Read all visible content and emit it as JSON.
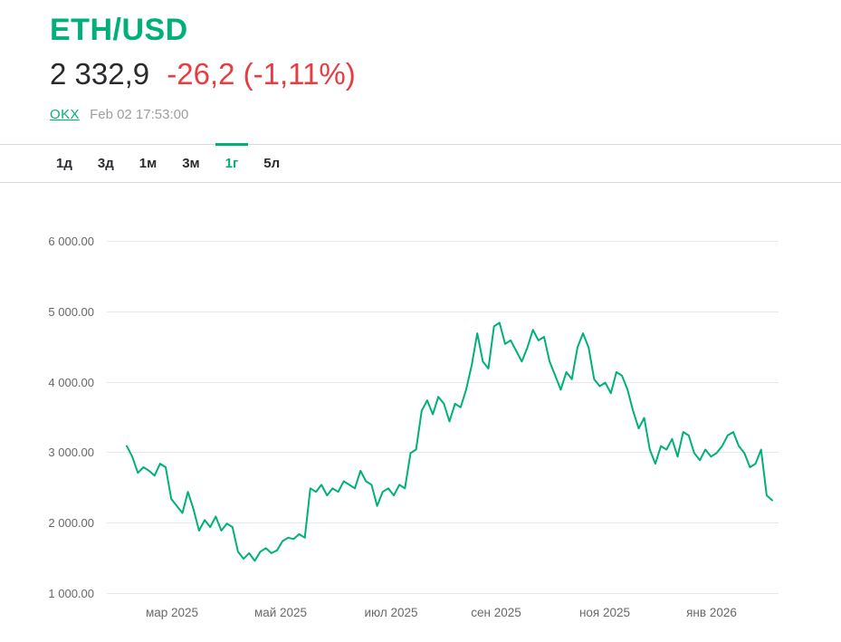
{
  "colors": {
    "accent": "#00b07a",
    "negative": "#e43d42",
    "line": "#00b07a"
  },
  "header": {
    "symbol": "ETH/USD",
    "price": "2 332,9",
    "change": "-26,2 (-1,11%)",
    "source": "OKX",
    "timestamp": "Feb 02 17:53:00"
  },
  "tabs": [
    {
      "label": "1д",
      "active": false
    },
    {
      "label": "3д",
      "active": false
    },
    {
      "label": "1м",
      "active": false
    },
    {
      "label": "3м",
      "active": false
    },
    {
      "label": "1г",
      "active": true
    },
    {
      "label": "5л",
      "active": false
    }
  ],
  "chart_data": {
    "type": "line",
    "title": "ETH/USD 1 year price",
    "series_name": "ETH/USD",
    "ylim": [
      1000,
      6000
    ],
    "yticks": [
      6000,
      5000,
      4000,
      3000,
      2000,
      1000
    ],
    "ytick_labels": [
      "6 000.00",
      "5 000.00",
      "4 000.00",
      "3 000.00",
      "2 000.00",
      "1 000.00"
    ],
    "xtick_labels": [
      "мар 2025",
      "май 2025",
      "июл 2025",
      "сен 2025",
      "ноя 2025",
      "янв 2026"
    ],
    "grid": true,
    "legend": "none",
    "values": [
      3100,
      2950,
      2720,
      2800,
      2750,
      2680,
      2850,
      2800,
      2350,
      2250,
      2150,
      2450,
      2200,
      1900,
      2050,
      1950,
      2100,
      1900,
      2000,
      1950,
      1600,
      1500,
      1580,
      1470,
      1600,
      1650,
      1580,
      1620,
      1750,
      1800,
      1780,
      1850,
      1800,
      2500,
      2450,
      2550,
      2400,
      2500,
      2450,
      2600,
      2550,
      2500,
      2750,
      2600,
      2550,
      2250,
      2450,
      2500,
      2400,
      2550,
      2500,
      3000,
      3050,
      3600,
      3750,
      3550,
      3800,
      3700,
      3450,
      3700,
      3650,
      3900,
      4250,
      4700,
      4300,
      4200,
      4800,
      4850,
      4550,
      4600,
      4450,
      4300,
      4500,
      4750,
      4600,
      4650,
      4300,
      4100,
      3900,
      4150,
      4050,
      4500,
      4700,
      4500,
      4050,
      3950,
      4000,
      3850,
      4150,
      4100,
      3900,
      3600,
      3350,
      3500,
      3050,
      2850,
      3100,
      3050,
      3200,
      2950,
      3300,
      3250,
      3000,
      2900,
      3050,
      2950,
      3000,
      3100,
      3250,
      3300,
      3100,
      3000,
      2800,
      2850,
      3050,
      2400,
      2330
    ]
  }
}
